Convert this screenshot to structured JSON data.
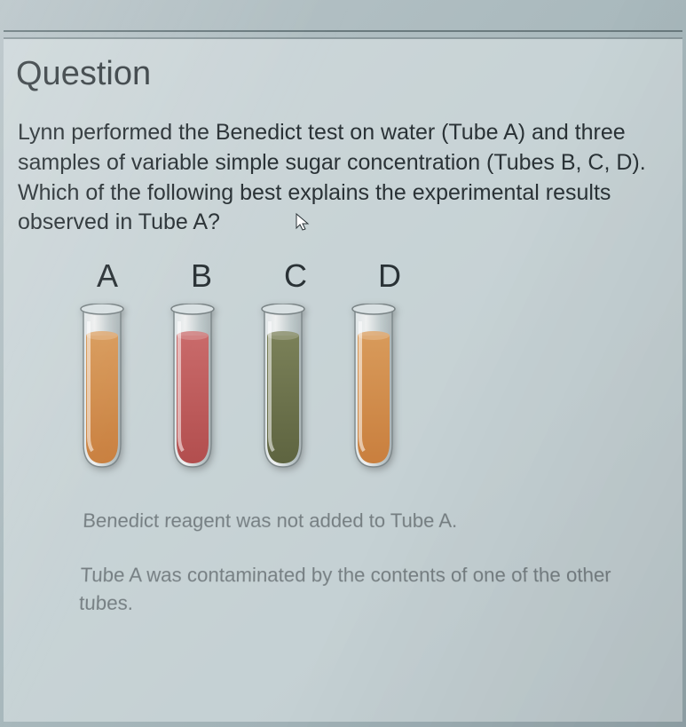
{
  "heading": "Question",
  "question_text": "Lynn performed the Benedict test on water (Tube A) and three samples of variable simple sugar concentration (Tubes B, C, D). Which of the following best explains the experimental results observed in Tube A?",
  "tubes": {
    "labels": [
      "A",
      "B",
      "C",
      "D"
    ],
    "items": [
      {
        "fill_top": "#d89a5a",
        "fill_bottom": "#c97f3e",
        "glass": "#bcc6c8"
      },
      {
        "fill_top": "#c96a6a",
        "fill_bottom": "#b24e4e",
        "glass": "#bcc6c8"
      },
      {
        "fill_top": "#7a8058",
        "fill_bottom": "#5e6440",
        "glass": "#bcc6c8"
      },
      {
        "fill_top": "#d89a5a",
        "fill_bottom": "#c97f3e",
        "glass": "#bcc6c8"
      }
    ],
    "label_fontsize": 36,
    "tube_width": 62,
    "tube_height": 190
  },
  "answers": [
    "Benedict reagent was not added to Tube A.",
    "Tube A was contaminated by the contents of one of the other tubes."
  ],
  "colors": {
    "bg_start": "#b8c4c8",
    "bg_end": "#98aab0",
    "heading": "#3a4246",
    "body_text": "#2a3236",
    "faded_text": "#5a6266",
    "divider": "#8a989c"
  }
}
